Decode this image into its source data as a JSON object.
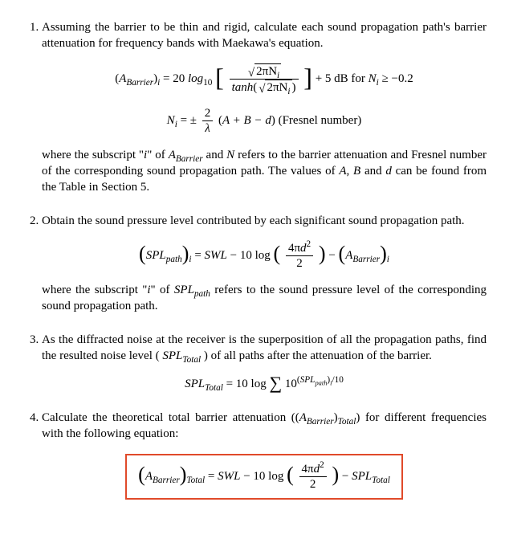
{
  "items": [
    {
      "intro": "Assuming the barrier to be thin and rigid, calculate each sound propagation path's barrier attenuation for frequency bands with Maekawa's equation.",
      "eq1": {
        "lhs_open": "(",
        "lhs_sym": "A",
        "lhs_sub": "Barrier",
        "lhs_close": ")",
        "lhs_isub": "i",
        "eq": " = 20 ",
        "log": "log",
        "log_sub": "10",
        "num_root": "2πN",
        "num_root_sub": "i",
        "den_tanh": "tanh",
        "den_root": "2πN",
        "den_root_sub": "i",
        "plus5": " + 5   dB   for   ",
        "cond_N": "N",
        "cond_sub": "i",
        "cond_rest": " ≥ −0.2"
      },
      "eq2": {
        "N": "N",
        "Nsub": "i",
        "rest1": " = ±",
        "frac_num": "2",
        "frac_den": "λ",
        "rest2": "(",
        "ABd": "A + B − d",
        "rest3": ")    (Fresnel number)"
      },
      "para": {
        "p1": "where the subscript \"",
        "p_i": "i",
        "p2": "\" of ",
        "p_A": "A",
        "p_Asub": "Barrier",
        "p3": " and ",
        "p_N": "N",
        "p4": " refers to the barrier attenuation and Fresnel number of the corresponding sound propagation path. The values of ",
        "p_A2": "A",
        "p_comma": ", ",
        "p_B": "B",
        "p_and": " and ",
        "p_d": "d",
        "p5": " can be found from the Table in Section 5."
      }
    },
    {
      "intro": "Obtain the sound pressure level contributed by each significant sound propagation path.",
      "eq": {
        "lp": "(",
        "SPL": "SPL",
        "SPLsub": "path",
        "rp": ")",
        "isub": "i",
        "mid": " = ",
        "SWL": "SWL",
        "minus": " − 10 log",
        "frac_num1": "4π",
        "frac_num_d": "d",
        "frac_num_sup": "2",
        "frac_den": "2",
        "minus2": " − ",
        "lp2": "(",
        "A": "A",
        "Asub": "Barrier",
        "rp2": ")",
        "isub2": "i"
      },
      "para": {
        "p1": "where the subscript \"",
        "p_i": "i",
        "p2": "\" of ",
        "p_SPL": "SPL",
        "p_SPLsub": "path",
        "p3": " refers to the sound pressure level of the corresponding sound propagation path."
      }
    },
    {
      "intro_a": "As the diffracted noise at the receiver is the superposition of all the propagation paths, find the resulted noise level ( ",
      "intro_SPL": "SPL",
      "intro_SPLsub": "Total",
      "intro_b": " ) of all paths after the attenuation of the barrier.",
      "eq": {
        "SPL": "SPL",
        "SPLsub": "Total",
        "mid": " = 10 log ",
        "sum": "∑",
        "ten": "10",
        "exp_lp": "(",
        "exp_SPL": "SPL",
        "exp_sub": "path",
        "exp_rp": ")",
        "exp_isub": "i",
        "exp_div": "/10"
      }
    },
    {
      "intro_a": "Calculate the theoretical total barrier attenuation (",
      "intro_lp": "(",
      "intro_A": "A",
      "intro_Asub": "Barrier",
      "intro_rp": ")",
      "intro_Tsub": "Total",
      "intro_b": ") for different frequencies with the following equation:",
      "eq": {
        "lp": "(",
        "A": "A",
        "Asub": "Barrier",
        "rp": ")",
        "Tsub": "Total",
        "mid": " = ",
        "SWL": "SWL",
        "minus": " − 10 log",
        "frac_num1": "4π",
        "frac_num_d": "d",
        "frac_num_sup": "2",
        "frac_den": "2",
        "minus2": " − ",
        "SPL": "SPL",
        "SPLsub": "Total"
      }
    }
  ]
}
